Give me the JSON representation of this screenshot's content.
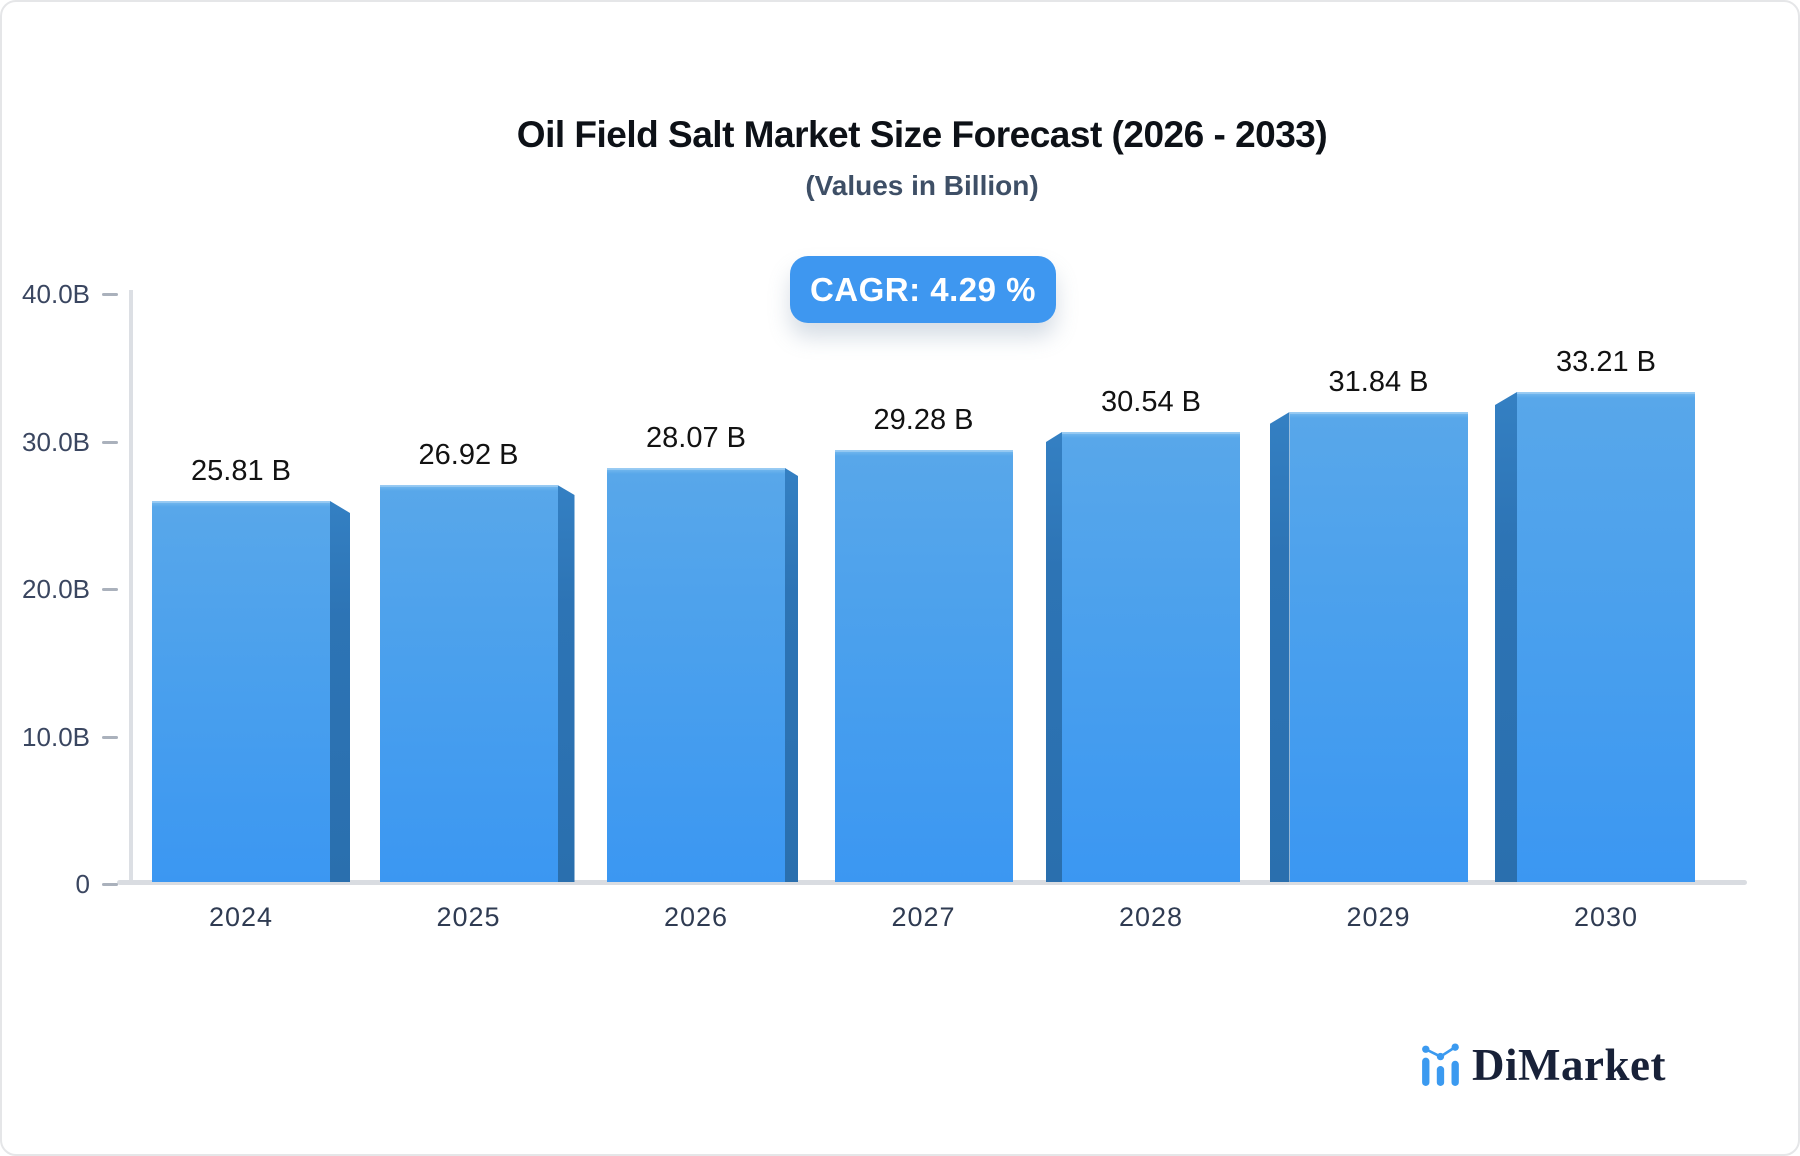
{
  "header": {
    "title": "Oil Field Salt Market Size Forecast (2026 - 2033)",
    "subtitle": "(Values in Billion)"
  },
  "badge": {
    "label": "CAGR: 4.29 %"
  },
  "brand": {
    "name": "DiMarket",
    "icon": "bar-chart-logo-icon"
  },
  "colors": {
    "bar_face_top": "#58a7ea",
    "bar_face_bottom": "#3b97f2",
    "bar_side": "#2d74b5",
    "badge_bg": "#3e97f0",
    "axis_line": "#dcdfe4",
    "text_dark": "#0d1117",
    "text_slate": "#3e4f66",
    "logo_navy": "#182138",
    "logo_blue": "#3b9af0"
  },
  "chart_data": {
    "type": "bar",
    "title": "Oil Field Salt Market Size Forecast (2026 - 2033)",
    "subtitle": "(Values in Billion)",
    "annotation": "CAGR: 4.29 %",
    "categories": [
      "2024",
      "2025",
      "2026",
      "2027",
      "2028",
      "2029",
      "2030"
    ],
    "values": [
      25.81,
      26.92,
      28.07,
      29.28,
      30.54,
      31.84,
      33.21
    ],
    "value_labels": [
      "25.81 B",
      "26.92 B",
      "28.07 B",
      "29.28 B",
      "30.54 B",
      "31.84 B",
      "33.21 B"
    ],
    "ytick_labels": [
      "40.0B",
      "30.0B",
      "20.0B",
      "10.0B",
      "0"
    ],
    "ylim": [
      0,
      40
    ],
    "unit": "Billion",
    "grid": false,
    "legend": false,
    "style": "3d-perspective-bars"
  }
}
